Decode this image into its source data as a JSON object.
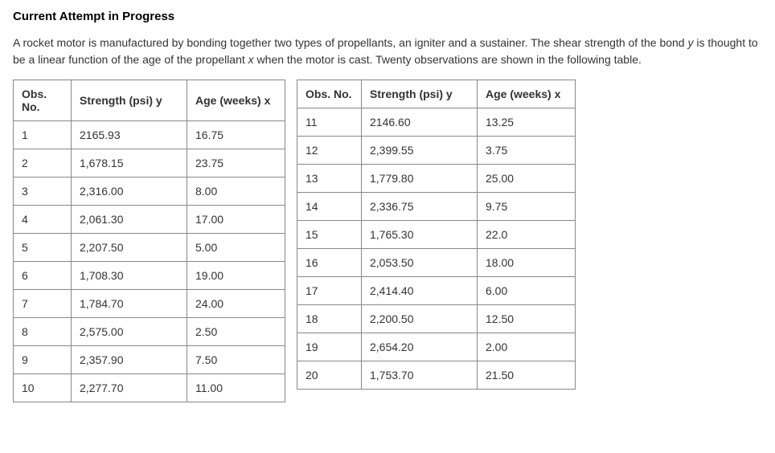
{
  "heading": "Current Attempt in Progress",
  "description_parts": {
    "p1": "A rocket motor is manufactured by bonding together two types of propellants, an igniter and a sustainer. The shear strength of the bond ",
    "i1": "y",
    "p2": " is thought to be a linear function of the age of the propellant ",
    "i2": "x",
    "p3": " when the motor is cast. Twenty observations are shown in the following table."
  },
  "table": {
    "headers": {
      "obs": "Obs. No.",
      "strength": "Strength (psi) y",
      "age": "Age (weeks) x"
    },
    "left": [
      {
        "obs": "1",
        "strength": "2165.93",
        "age": "16.75"
      },
      {
        "obs": "2",
        "strength": "1,678.15",
        "age": "23.75"
      },
      {
        "obs": "3",
        "strength": "2,316.00",
        "age": "8.00"
      },
      {
        "obs": "4",
        "strength": "2,061.30",
        "age": "17.00"
      },
      {
        "obs": "5",
        "strength": "2,207.50",
        "age": "5.00"
      },
      {
        "obs": "6",
        "strength": "1,708.30",
        "age": "19.00"
      },
      {
        "obs": "7",
        "strength": "1,784.70",
        "age": "24.00"
      },
      {
        "obs": "8",
        "strength": "2,575.00",
        "age": "2.50"
      },
      {
        "obs": "9",
        "strength": "2,357.90",
        "age": "7.50"
      },
      {
        "obs": "10",
        "strength": "2,277.70",
        "age": "11.00"
      }
    ],
    "right": [
      {
        "obs": "11",
        "strength": "2146.60",
        "age": "13.25"
      },
      {
        "obs": "12",
        "strength": "2,399.55",
        "age": "3.75"
      },
      {
        "obs": "13",
        "strength": "1,779.80",
        "age": "25.00"
      },
      {
        "obs": "14",
        "strength": "2,336.75",
        "age": "9.75"
      },
      {
        "obs": "15",
        "strength": "1,765.30",
        "age": "22.0"
      },
      {
        "obs": "16",
        "strength": "2,053.50",
        "age": "18.00"
      },
      {
        "obs": "17",
        "strength": "2,414.40",
        "age": "6.00"
      },
      {
        "obs": "18",
        "strength": "2,200.50",
        "age": "12.50"
      },
      {
        "obs": "19",
        "strength": "2,654.20",
        "age": "2.00"
      },
      {
        "obs": "20",
        "strength": "1,753.70",
        "age": "21.50"
      }
    ]
  },
  "styling": {
    "type": "table",
    "font_family": "Arial, Helvetica, sans-serif",
    "body_fontsize": 14,
    "heading_fontsize": 15,
    "text_color": "#333333",
    "heading_color": "#000000",
    "border_color": "#888888",
    "background_color": "#ffffff",
    "cell_padding": "9px 10px",
    "table_gap": 14,
    "columns_left": {
      "obs_width": 72,
      "strength_width": 144,
      "age_width": 122
    },
    "columns_right": {
      "obs_width": 80,
      "strength_width": 144,
      "age_width": 122
    }
  }
}
